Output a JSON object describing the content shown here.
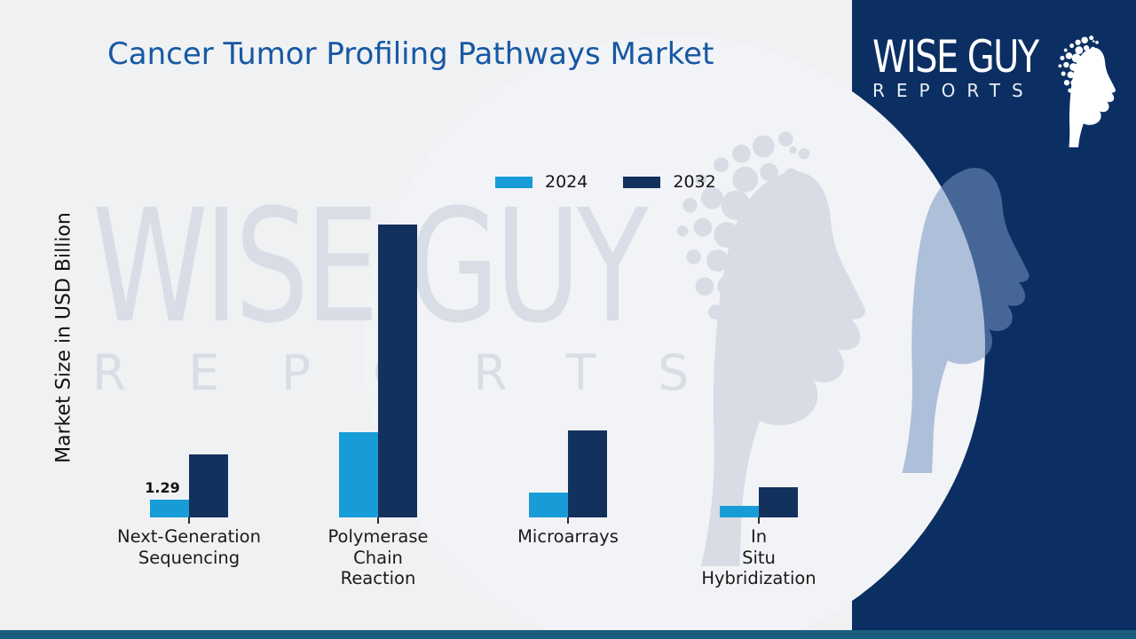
{
  "page": {
    "title": "Cancer Tumor Profiling Pathways Market",
    "y_axis_label": "Market Size in USD Billion"
  },
  "legend": {
    "items": [
      {
        "label": "2024",
        "color": "#189cd8"
      },
      {
        "label": "2032",
        "color": "#12315c"
      }
    ]
  },
  "chart_data": {
    "type": "bar",
    "title": "Cancer Tumor Profiling Pathways Market",
    "ylabel": "Market Size in USD Billion",
    "ylim": [
      0,
      24
    ],
    "grid": false,
    "legend_position": "top-right",
    "categories": [
      "Next-Generation Sequencing",
      "Polymerase Chain Reaction",
      "Microarrays",
      "In Situ Hybridization"
    ],
    "category_label_lines": [
      [
        "Next-Generation",
        "Sequencing"
      ],
      [
        "Polymerase",
        "Chain",
        "Reaction"
      ],
      [
        "Microarrays"
      ],
      [
        "In",
        "Situ",
        "Hybridization"
      ]
    ],
    "series": [
      {
        "name": "2024",
        "color": "#189cd8",
        "values": [
          1.29,
          6.2,
          1.8,
          0.85
        ]
      },
      {
        "name": "2032",
        "color": "#12315c",
        "values": [
          4.6,
          21.3,
          6.3,
          2.2
        ]
      }
    ],
    "annotations": [
      {
        "series_index": 0,
        "category_index": 0,
        "text": "1.29"
      }
    ]
  },
  "watermark": {
    "line1": "WISE GUY",
    "line2": "REPORTS"
  },
  "logo": {
    "line1": "WISE GUY",
    "line2": "REPORTS"
  },
  "colors": {
    "title": "#1658a4",
    "background": "#f0f1f3",
    "panel": "#0b2f63",
    "bottom_bar": "#1a5e7e",
    "bar_2024": "#189cd8",
    "bar_2032": "#12315c"
  }
}
